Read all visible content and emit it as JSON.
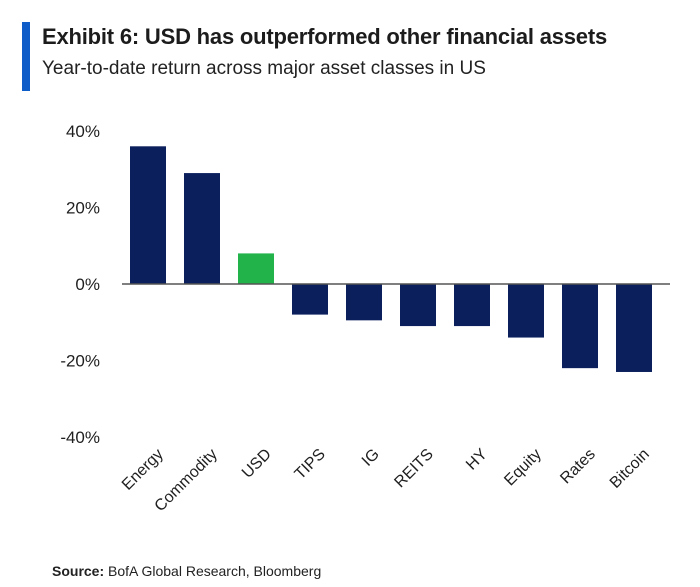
{
  "header": {
    "title": "Exhibit 6: USD has outperformed other financial assets",
    "subtitle": "Year-to-date return across major asset classes in US"
  },
  "source": {
    "label": "Source:",
    "text": " BofA Global Research, Bloomberg"
  },
  "colors": {
    "accent": "#0e5cc7",
    "bar_default": "#0b1f5c",
    "bar_highlight": "#22b34b",
    "axis": "#555555"
  },
  "chart_data": {
    "type": "bar",
    "categories": [
      "Energy",
      "Commodity",
      "USD",
      "TIPS",
      "IG",
      "REITS",
      "HY",
      "Equity",
      "Rates",
      "Bitcoin"
    ],
    "values": [
      36,
      29,
      8,
      -8,
      -9.5,
      -11,
      -11,
      -14,
      -22,
      -23
    ],
    "highlight_index": 2,
    "y_ticks": [
      40,
      20,
      0,
      -20,
      -40
    ],
    "y_tick_labels": [
      "40%",
      "20%",
      "0%",
      "-20%",
      "-40%"
    ],
    "ylim": [
      -40,
      40
    ],
    "grid": false
  }
}
